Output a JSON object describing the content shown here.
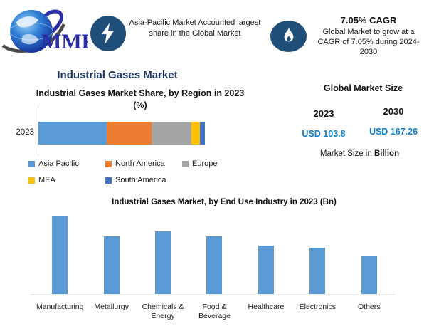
{
  "brand": {
    "logo_text": "MMR"
  },
  "header": {
    "highlight": {
      "icon": "lightning-icon",
      "text": "Asia-Pacific Market Accounted largest share in the Global Market"
    },
    "cagr": {
      "icon": "flame-icon",
      "title": "7.05% CAGR",
      "description": "Global Market to grow at a CAGR of 7.05% during 2024-2030"
    }
  },
  "region_section": {
    "section_title": "Industrial Gases Market",
    "chart_title": "Industrial Gases Market Share, by Region in 2023 (%)",
    "category_label": "2023"
  },
  "market_size": {
    "title": "Global Market Size",
    "columns": [
      {
        "year": "2023",
        "value": "USD 103.8"
      },
      {
        "year": "2030",
        "value": "USD 167.26"
      }
    ],
    "note_regular": "Market Size in ",
    "note_bold": "Billion"
  },
  "end_use_section": {
    "chart_title": "Industrial Gases Market, by End Use Industry in 2023 (Bn)"
  },
  "colors": {
    "badge_navy": "#1F4E79",
    "title_navy": "#1F3864",
    "usd_blue": "#1080D0",
    "axis_gray": "#D9D9D9"
  },
  "chart_data": [
    {
      "type": "bar",
      "subtype": "horizontal-stacked",
      "title": "Industrial Gases Market Share, by Region in 2023 (%)",
      "categories": [
        "2023"
      ],
      "series": [
        {
          "name": "Asia Pacific",
          "color": "#5B9BD5",
          "values": [
            41
          ]
        },
        {
          "name": "North America",
          "color": "#ED7D31",
          "values": [
            27
          ]
        },
        {
          "name": "Europe",
          "color": "#A5A5A5",
          "values": [
            24
          ]
        },
        {
          "name": "MEA",
          "color": "#FFC000",
          "values": [
            5
          ]
        },
        {
          "name": "South America",
          "color": "#4472C4",
          "values": [
            3
          ]
        }
      ],
      "xlim": [
        0,
        100
      ],
      "grid": false,
      "legend_position": "bottom"
    },
    {
      "type": "bar",
      "title": "Industrial Gases Market, by End Use Industry in 2023 (Bn)",
      "categories": [
        "Manufacturing",
        "Metallurgy",
        "Chemicals & Energy",
        "Food & Beverage",
        "Healthcare",
        "Electronics",
        "Others"
      ],
      "values": [
        20.7,
        15.5,
        16.8,
        15.5,
        12.9,
        12.4,
        10.1
      ],
      "bar_color": "#5B9BD5",
      "ylim": [
        0,
        22
      ],
      "grid": false,
      "value_labels": false
    }
  ]
}
